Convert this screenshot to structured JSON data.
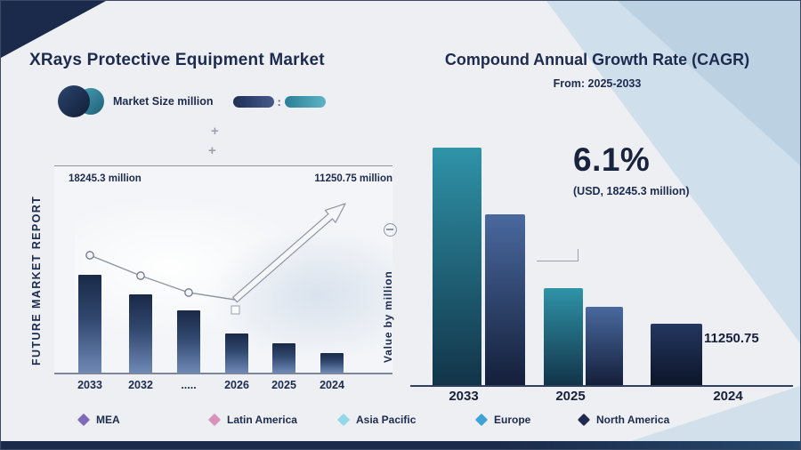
{
  "decor": {
    "plus": "+",
    "legend_separator": ":"
  },
  "chart_data": [
    {
      "type": "bar",
      "panel": "left",
      "title": "XRays Protective Equipment Market",
      "legend_label": "Market Size million",
      "ylabel": "FUTURE MARKET REPORT",
      "annotation_left": "18245.3 million",
      "annotation_right": "11250.75 million",
      "categories": [
        "2033",
        "2032",
        ".....",
        "2026",
        "2025",
        "2024"
      ],
      "values": [
        18245.3,
        16500,
        15070,
        13000,
        12125,
        11250.75
      ],
      "values_note": "2033 (18245.3) and 2024 (11250.75) are labeled on the chart; intermediate values estimated from bar heights",
      "overlay": "trend line with circle markers descending, then outlined arrow rising to upper right",
      "bar_gradient": [
        "#1a2947",
        "#6e88b5"
      ]
    },
    {
      "type": "bar",
      "panel": "right",
      "title": "Compound Annual Growth Rate (CAGR)",
      "subtitle": "From: 2025-2033",
      "cagr": "6.1%",
      "cagr_caption": "(USD, 18245.3 million)",
      "ylabel": "Value by million",
      "annotation_2024": "11250.75",
      "categories": [
        "2033",
        "2025",
        "2024"
      ],
      "groups": [
        {
          "label": "2033",
          "bars": [
            {
              "rel_height": 1.0,
              "color_top": "#2f93a8",
              "color_bottom": "#123449"
            },
            {
              "rel_height": 0.72,
              "color_top": "#4a699f",
              "color_bottom": "#141f3a"
            }
          ]
        },
        {
          "label": "2025",
          "bars": [
            {
              "rel_height": 0.41,
              "color_top": "#2f93a8",
              "color_bottom": "#123449"
            },
            {
              "rel_height": 0.33,
              "color_top": "#4a699f",
              "color_bottom": "#141f3a"
            }
          ]
        },
        {
          "label": "2024",
          "bars": [
            {
              "rel_height": 0.26,
              "color_top": "#24375f",
              "color_bottom": "#0c1529"
            }
          ]
        }
      ],
      "heights_note": "bar heights are relative design proportions; 2033 value 18245.3 and 2024 value 11250.75 are the labeled figures"
    }
  ],
  "legend": {
    "items": [
      {
        "label": "MEA",
        "color": "#7e6ab8"
      },
      {
        "label": "Latin America",
        "color": "#d892bb"
      },
      {
        "label": "Asia Pacific",
        "color": "#92d8e8"
      },
      {
        "label": "Europe",
        "color": "#3ea2d9"
      },
      {
        "label": "North America",
        "color": "#1e2b4f"
      }
    ]
  }
}
